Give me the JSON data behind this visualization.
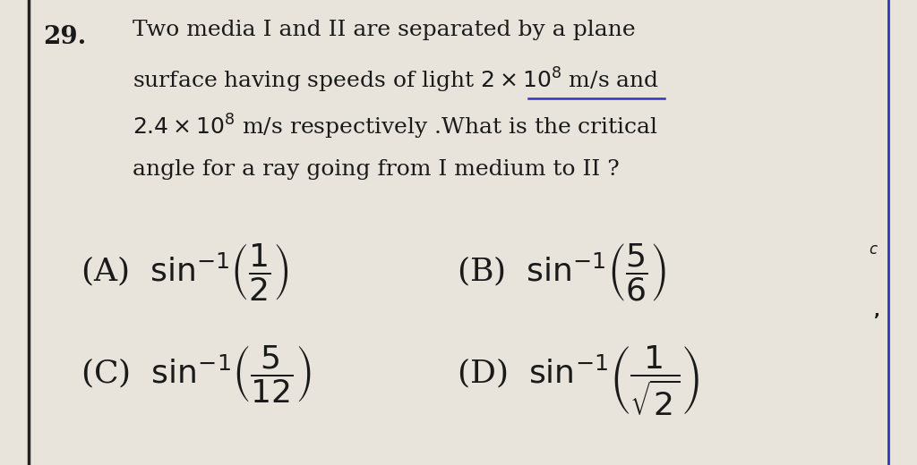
{
  "bg_color": "#e8e4dc",
  "text_color": "#1a1a1a",
  "question_number": "29.",
  "line1": "Two media I and II are separated by a plane",
  "line2": "surface having speeds of light $2 \\times 10^8$ m/s and",
  "line3": "$2.4 \\times10^8$ m/s respectively .What is the critical",
  "line4": "angle for a ray going from I medium to II ?",
  "option_A": "(A)  $\\sin^{-1}\\!\\left(\\dfrac{1}{2}\\right)$",
  "option_B": "(B)  $\\sin^{-1}\\!\\left(\\dfrac{5}{6}\\right)$",
  "option_C": "(C)  $\\sin^{-1}\\!\\left(\\dfrac{5}{12}\\right)$",
  "option_D": "(D)  $\\sin^{-1}\\!\\left(\\dfrac{1}{\\sqrt{2}}\\right)$",
  "left_bar_color": "#222222",
  "right_bar_color": "#3333bb",
  "underline_color": "#3333bb",
  "font_size_q": 18,
  "font_size_num": 20,
  "font_size_opt": 26
}
